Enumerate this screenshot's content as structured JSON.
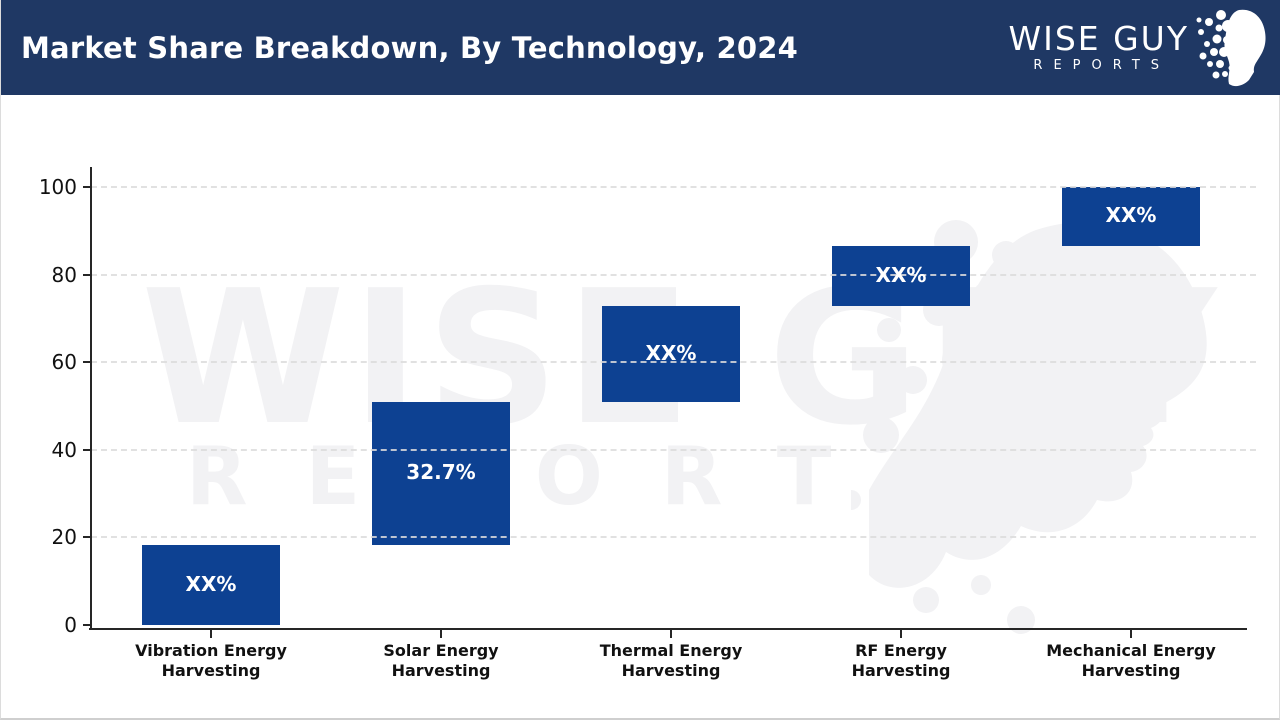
{
  "header": {
    "title": "Market Share Breakdown, By Technology, 2024",
    "bg_color": "#1f3864",
    "logo": {
      "line1": "WISE GUY",
      "line2": "REPORTS"
    }
  },
  "watermark": {
    "line1": "WISE GUY",
    "line2": "REPORTS"
  },
  "chart_data": {
    "type": "bar",
    "subtype": "waterfall",
    "title": "Market Share Breakdown, By Technology, 2024",
    "xlabel": "",
    "ylabel": "",
    "ylim": [
      0,
      100
    ],
    "yticks": [
      0,
      20,
      40,
      60,
      80,
      100
    ],
    "grid": "horizontal-dashed",
    "legend": "none",
    "bar_color": "#0d4192",
    "bar_label_color": "#ffffff",
    "categories": [
      "Vibration Energy Harvesting",
      "Solar Energy Harvesting",
      "Thermal Energy Harvesting",
      "RF Energy Harvesting",
      "Mechanical Energy Harvesting"
    ],
    "category_lines": [
      [
        "Vibration Energy",
        "Harvesting"
      ],
      [
        "Solar Energy",
        "Harvesting"
      ],
      [
        "Thermal Energy",
        "Harvesting"
      ],
      [
        "RF Energy",
        "Harvesting"
      ],
      [
        "Mechanical Energy",
        "Harvesting"
      ]
    ],
    "segments": [
      {
        "category": "Vibration Energy Harvesting",
        "start": 0,
        "end": 18.3,
        "label": "XX%"
      },
      {
        "category": "Solar Energy Harvesting",
        "start": 18.3,
        "end": 51.0,
        "label": "32.7%"
      },
      {
        "category": "Thermal Energy Harvesting",
        "start": 51.0,
        "end": 72.9,
        "label": "XX%"
      },
      {
        "category": "RF Energy Harvesting",
        "start": 72.9,
        "end": 86.6,
        "label": "XX%"
      },
      {
        "category": "Mechanical Energy Harvesting",
        "start": 86.6,
        "end": 100,
        "label": "XX%"
      }
    ]
  }
}
